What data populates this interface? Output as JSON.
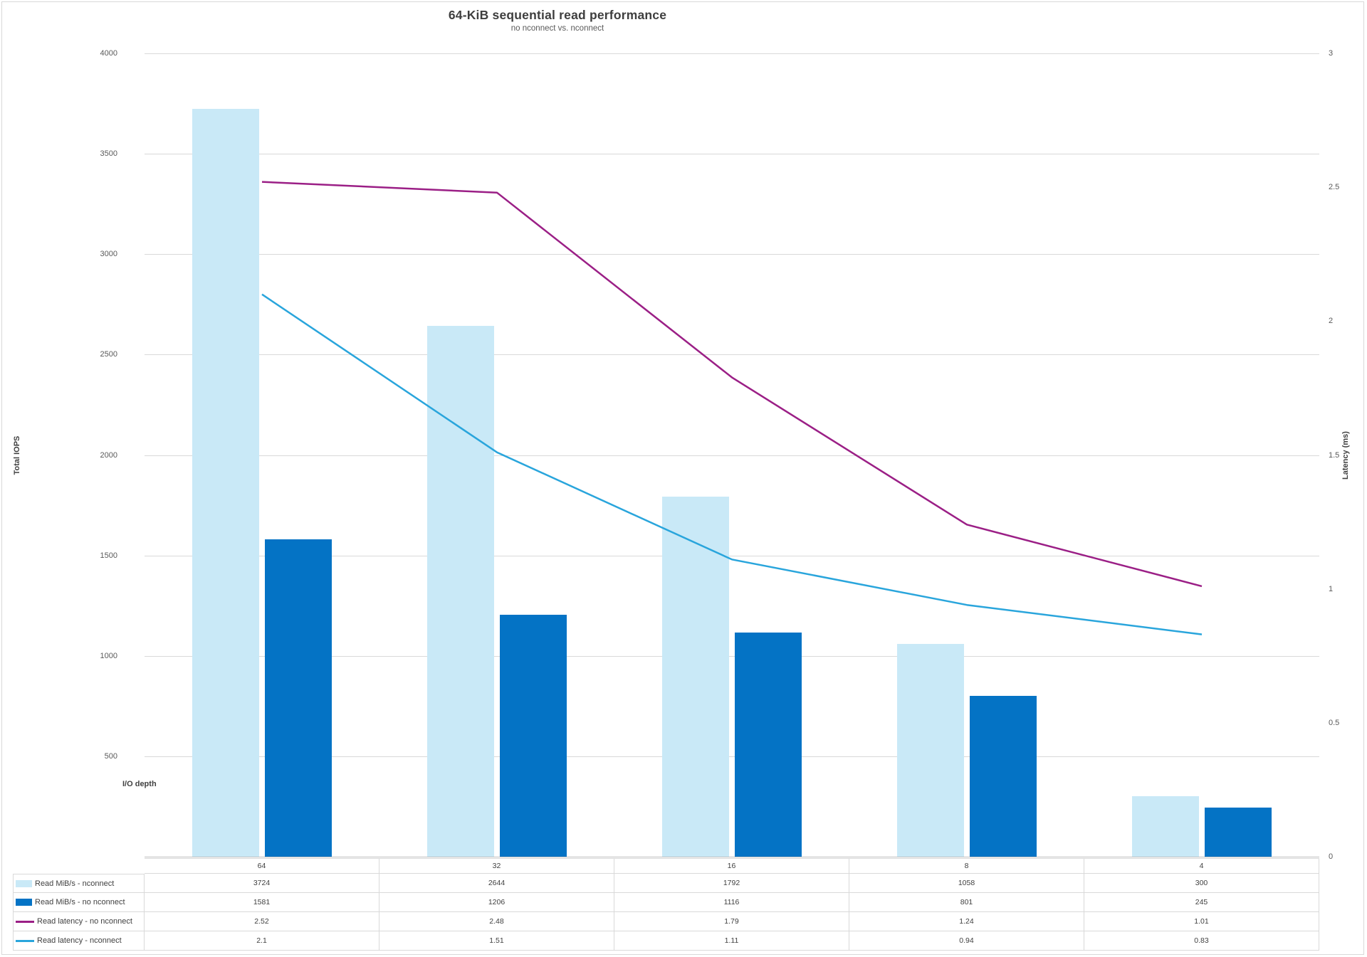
{
  "header": {
    "title": "64-KiB sequential read performance",
    "subtitle": "no nconnect vs. nconnect"
  },
  "axes": {
    "left_title": "Total IOPS",
    "right_title": "Latency (ms)",
    "x_title": "I/O depth",
    "left_ticks": [
      4000,
      3500,
      3000,
      2500,
      2000,
      1500,
      1000,
      500
    ],
    "right_ticks": [
      3,
      2.5,
      2,
      1.5,
      1,
      0.5,
      0
    ]
  },
  "colors": {
    "grid": "#D9D9D9",
    "axis_line": "#BFBFBF",
    "tick_text": "#595959",
    "table_text": "#404040",
    "bar_light": "#C9E9F7",
    "bar_dark": "#0473C5",
    "line_purple": "#9B1F86",
    "line_cyan": "#29A5DC"
  },
  "chart_data": {
    "type": "bar+line",
    "title": "64-KiB sequential read performance",
    "subtitle": "no nconnect vs. nconnect",
    "xlabel": "I/O depth",
    "ylabel_left": "Total IOPS",
    "ylabel_right": "Latency (ms)",
    "ylim_left": [
      0,
      4000
    ],
    "ylim_right": [
      0,
      3
    ],
    "grid": true,
    "legend_position": "table-bottom",
    "categories": [
      "64",
      "32",
      "16",
      "8",
      "4"
    ],
    "series": [
      {
        "name": "Read MiB/s - nconnect",
        "type": "bar",
        "axis": "left",
        "color": "#C9E9F7",
        "values": [
          3724,
          2644,
          1792,
          1058,
          300
        ]
      },
      {
        "name": "Read MiB/s - no nconnect",
        "type": "bar",
        "axis": "left",
        "color": "#0473C5",
        "values": [
          1581,
          1206,
          1116,
          801,
          245
        ]
      },
      {
        "name": "Read latency - no nconnect",
        "type": "line",
        "axis": "right",
        "color": "#9B1F86",
        "values": [
          2.52,
          2.48,
          1.79,
          1.24,
          1.01
        ]
      },
      {
        "name": "Read latency - nconnect",
        "type": "line",
        "axis": "right",
        "color": "#29A5DC",
        "values": [
          2.1,
          1.51,
          1.11,
          0.94,
          0.83
        ]
      }
    ]
  }
}
